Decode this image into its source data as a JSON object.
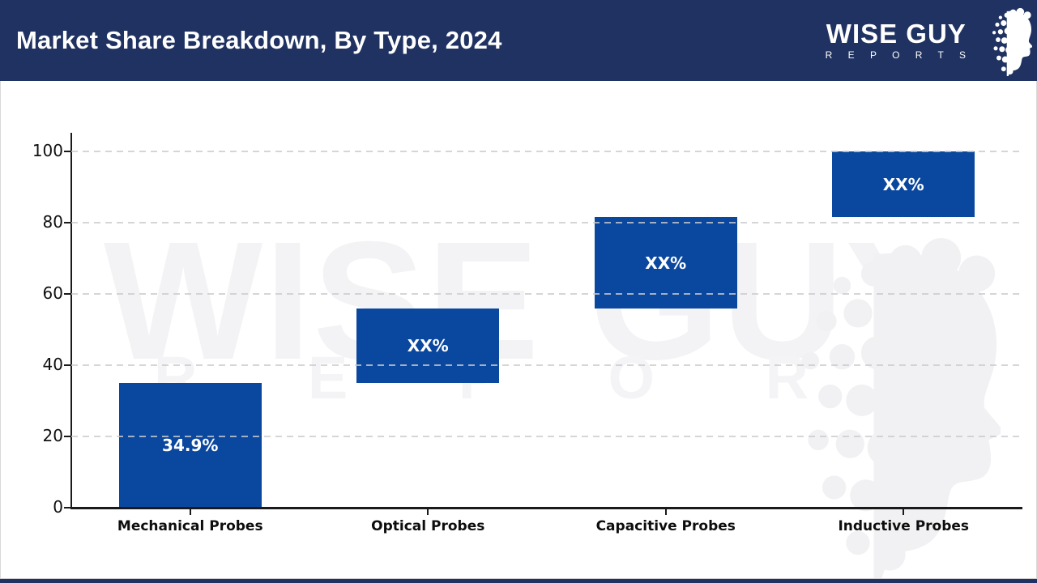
{
  "header": {
    "title": "Market Share Breakdown, By Type, 2024",
    "logo": {
      "line1": "WISE GUY",
      "line2": "R E P O R T S"
    }
  },
  "watermark": {
    "line1": "WISE GUY",
    "line2": "R E P O R T S"
  },
  "chart_data": {
    "type": "bar",
    "subtype": "waterfall",
    "title": "Market Share Breakdown, By Type, 2024",
    "categories": [
      "Mechanical Probes",
      "Optical Probes",
      "Capacitive Probes",
      "Inductive Probes"
    ],
    "segments": [
      {
        "category": "Mechanical Probes",
        "start": 0,
        "end": 34.9,
        "label": "34.9%"
      },
      {
        "category": "Optical Probes",
        "start": 34.9,
        "end": 55.9,
        "label": "XX%"
      },
      {
        "category": "Capacitive Probes",
        "start": 55.9,
        "end": 81.5,
        "label": "XX%"
      },
      {
        "category": "Inductive Probes",
        "start": 81.5,
        "end": 100,
        "label": "XX%"
      }
    ],
    "yticks": [
      0,
      20,
      40,
      60,
      80,
      100
    ],
    "ylim": [
      0,
      104
    ],
    "xlabel": "",
    "ylabel": "",
    "grid": "dashed-horizontal",
    "legend": "none",
    "bar_color": "#0a479e",
    "bar_label_color": "#ffffff"
  },
  "colors": {
    "header_bg": "#1f3261",
    "footer_bg": "#1f3261",
    "bar": "#0a479e",
    "watermark": "#f3f3f5",
    "axis": "#1a1a1a",
    "gridline": "#cbcbce"
  }
}
